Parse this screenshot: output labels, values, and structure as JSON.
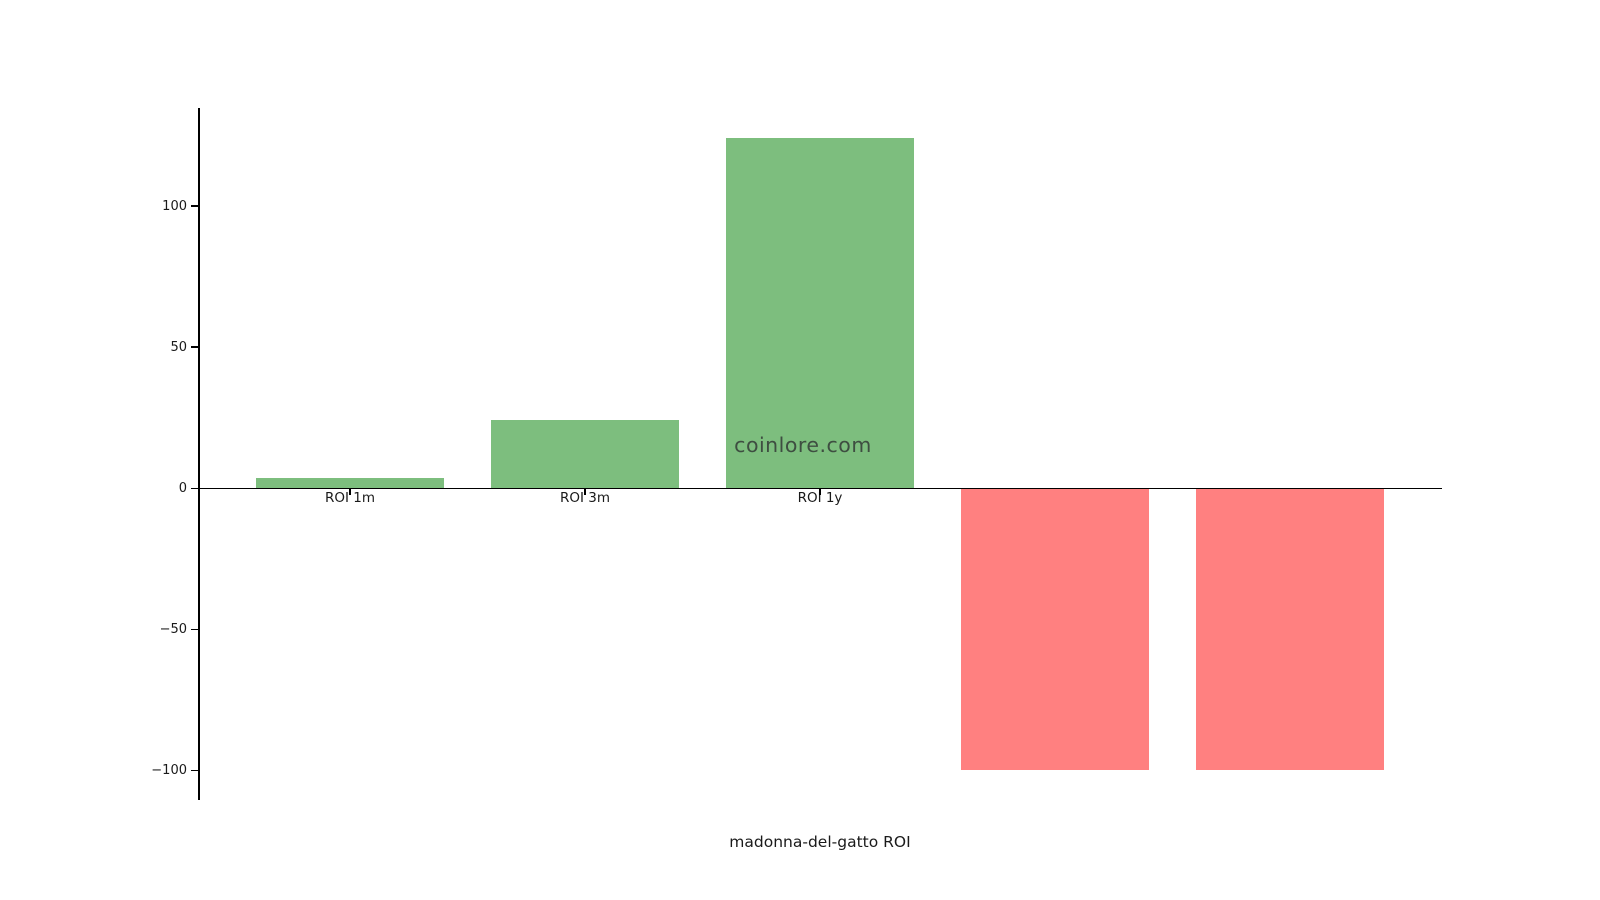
{
  "chart_data": {
    "type": "bar",
    "title": "madonna-del-gatto ROI",
    "watermark": "coinlore.com",
    "categories": [
      "ROI 1m",
      "ROI 3m",
      "ROI 1y",
      null,
      null
    ],
    "values": [
      3.5,
      24,
      124,
      -100,
      -100
    ],
    "bar_colors": [
      "#7dbe7e",
      "#7dbe7e",
      "#7dbe7e",
      "#ff8080",
      "#ff8080"
    ],
    "positive_color": "#7dbe7e",
    "negative_color": "#ff8080",
    "xlabel": "",
    "ylabel": "",
    "ylim": [
      -110,
      135
    ],
    "yticks": [
      100,
      50,
      0,
      -50,
      -100
    ],
    "ytick_labels": [
      "100",
      "50",
      "0",
      "−50",
      "−100"
    ],
    "grid": false,
    "legend": "none",
    "background": "#ffffff",
    "axis_color": "#000000",
    "text_color": "#1a1a1a",
    "watermark_color": "#3e4e41"
  }
}
